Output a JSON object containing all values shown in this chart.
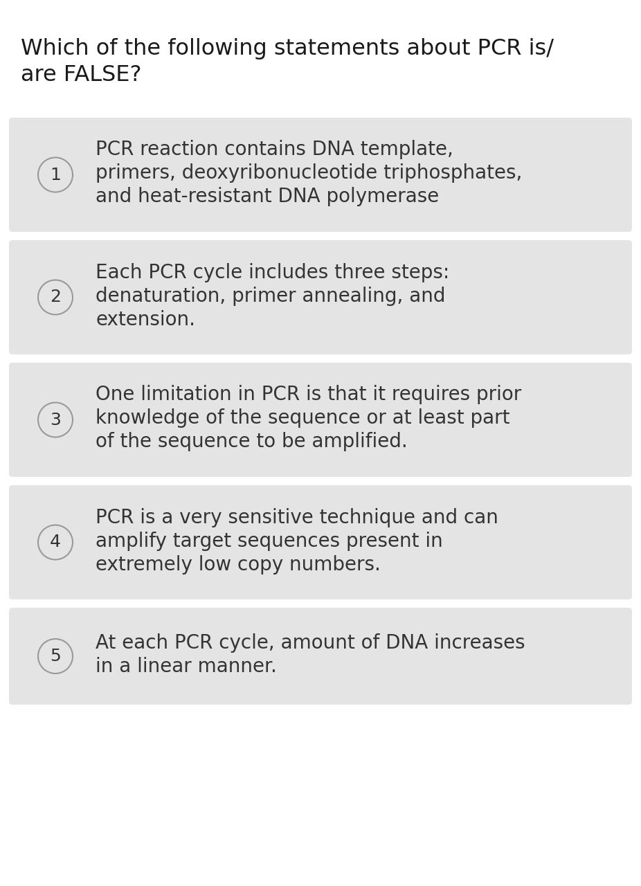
{
  "title_line1": "Which of the following statements about PCR is/",
  "title_line2": "are FALSE?",
  "title_fontsize": 23,
  "title_color": "#1a1a1a",
  "background_color": "#ffffff",
  "box_color": "#e4e4e4",
  "text_color": "#333333",
  "circle_edge_color": "#999999",
  "circle_face_color": "#e4e4e4",
  "items": [
    {
      "number": "1",
      "lines": [
        "PCR reaction contains DNA template,",
        "primers, deoxyribonucleotide triphosphates,",
        "and heat-resistant DNA polymerase"
      ]
    },
    {
      "number": "2",
      "lines": [
        "Each PCR cycle includes three steps:",
        "denaturation, primer annealing, and",
        "extension."
      ]
    },
    {
      "number": "3",
      "lines": [
        "One limitation in PCR is that it requires prior",
        "knowledge of the sequence or at least part",
        "of the sequence to be amplified."
      ]
    },
    {
      "number": "4",
      "lines": [
        "PCR is a very sensitive technique and can",
        "amplify target sequences present in",
        "extremely low copy numbers."
      ]
    },
    {
      "number": "5",
      "lines": [
        "At each PCR cycle, amount of DNA increases",
        "in a linear manner."
      ]
    }
  ],
  "item_fontsize": 20,
  "number_fontsize": 18
}
